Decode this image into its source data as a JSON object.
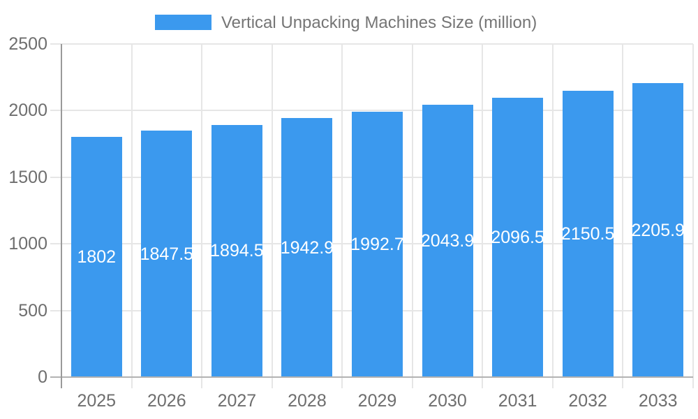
{
  "chart_data": {
    "type": "bar",
    "series_name": "Vertical Unpacking Machines Size (million)",
    "categories": [
      "2025",
      "2026",
      "2027",
      "2028",
      "2029",
      "2030",
      "2031",
      "2032",
      "2033"
    ],
    "values": [
      1802,
      1847.5,
      1894.5,
      1942.9,
      1992.7,
      2043.9,
      2096.5,
      2150.5,
      2205.9
    ],
    "value_labels": [
      "1802",
      "1847.5",
      "1894.5",
      "1942.9",
      "1992.7",
      "2043.9",
      "2096.5",
      "2150.5",
      "2205.9"
    ],
    "y_ticks": [
      0,
      500,
      1000,
      1500,
      2000,
      2500
    ],
    "ylim": [
      0,
      2500
    ],
    "xlabel": "",
    "ylabel": "",
    "grid": true,
    "legend_position": "top",
    "colors": {
      "bar": "#3b99ee",
      "legend_text": "#757575",
      "axis_text": "#6e6e6e",
      "gridline": "#e6e6e6",
      "axis_line_y": "#9a9a9a",
      "baseline": "#b2b2b2",
      "value_label": "#ffffff",
      "background": "#ffffff"
    }
  }
}
